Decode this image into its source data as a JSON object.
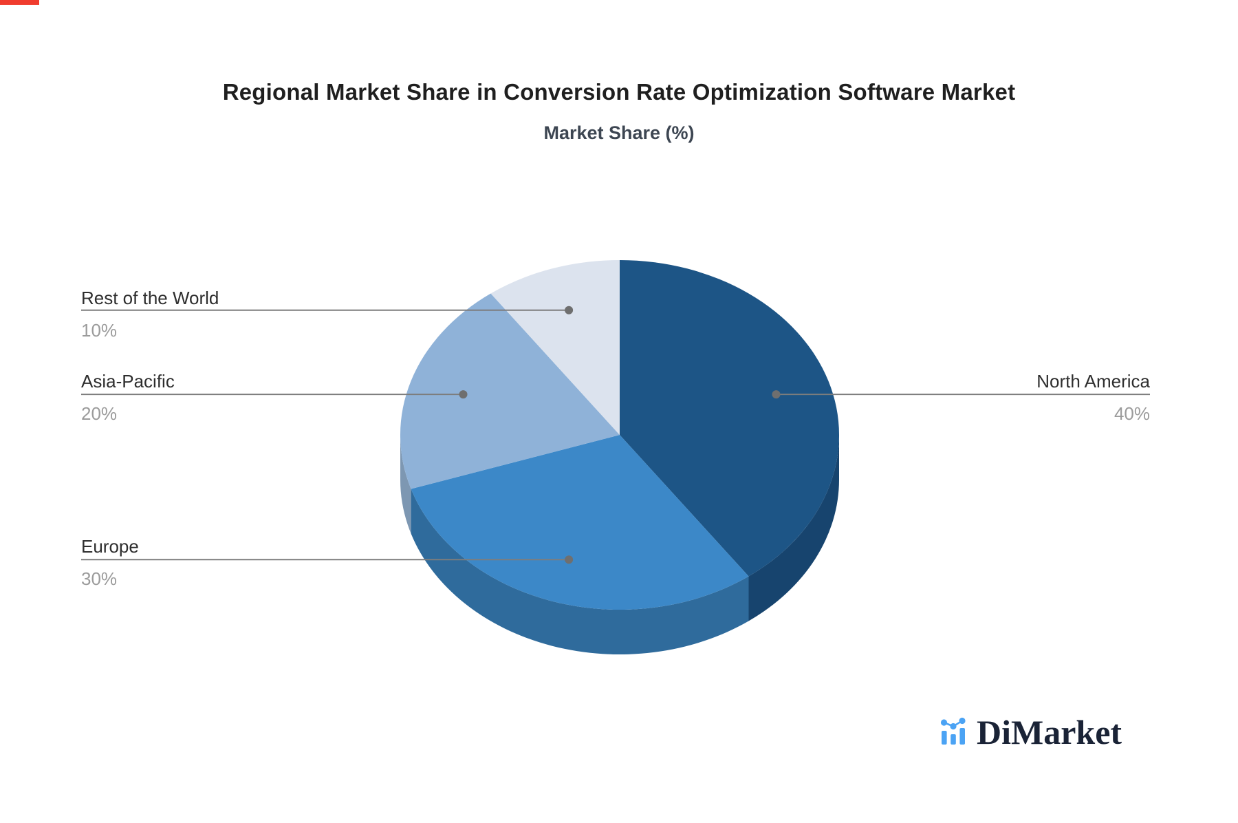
{
  "title": "Regional Market Share in Conversion Rate Optimization Software Market",
  "subtitle": "Market Share (%)",
  "chart_data": {
    "type": "pie",
    "title": "Regional Market Share in Conversion Rate Optimization Software Market",
    "subtitle": "Market Share (%)",
    "unit": "%",
    "style": "3d-pie",
    "start_angle_deg": 0,
    "direction": "clockwise",
    "legend_position": "callout-labels",
    "slices": [
      {
        "label": "North America",
        "value": 40,
        "display": "40%",
        "color": "#1d5586",
        "side_color": "#17446e"
      },
      {
        "label": "Europe",
        "value": 30,
        "display": "30%",
        "color": "#3c88c8",
        "side_color": "#2f6b9c"
      },
      {
        "label": "Asia-Pacific",
        "value": 20,
        "display": "20%",
        "color": "#8fb2d8",
        "side_color": "#7d97b2"
      },
      {
        "label": "Rest of the World",
        "value": 10,
        "display": "10%",
        "color": "#dce3ee",
        "side_color": "#c3cedd"
      }
    ]
  },
  "logo": {
    "text": "DiMarket",
    "icon": "bar-line-chart-icon",
    "accent_color": "#4ba3f4",
    "text_color": "#1a2336"
  },
  "colors": {
    "background": "#ffffff",
    "title_text": "#1f1f1f",
    "subtitle_text": "#3d4652",
    "label_text": "#2e2e2e",
    "pct_text": "#9b9b9b",
    "leader_line": "#7d7d7d",
    "leader_dot": "#6f6f6f",
    "top_strip": "#f03c2e"
  }
}
